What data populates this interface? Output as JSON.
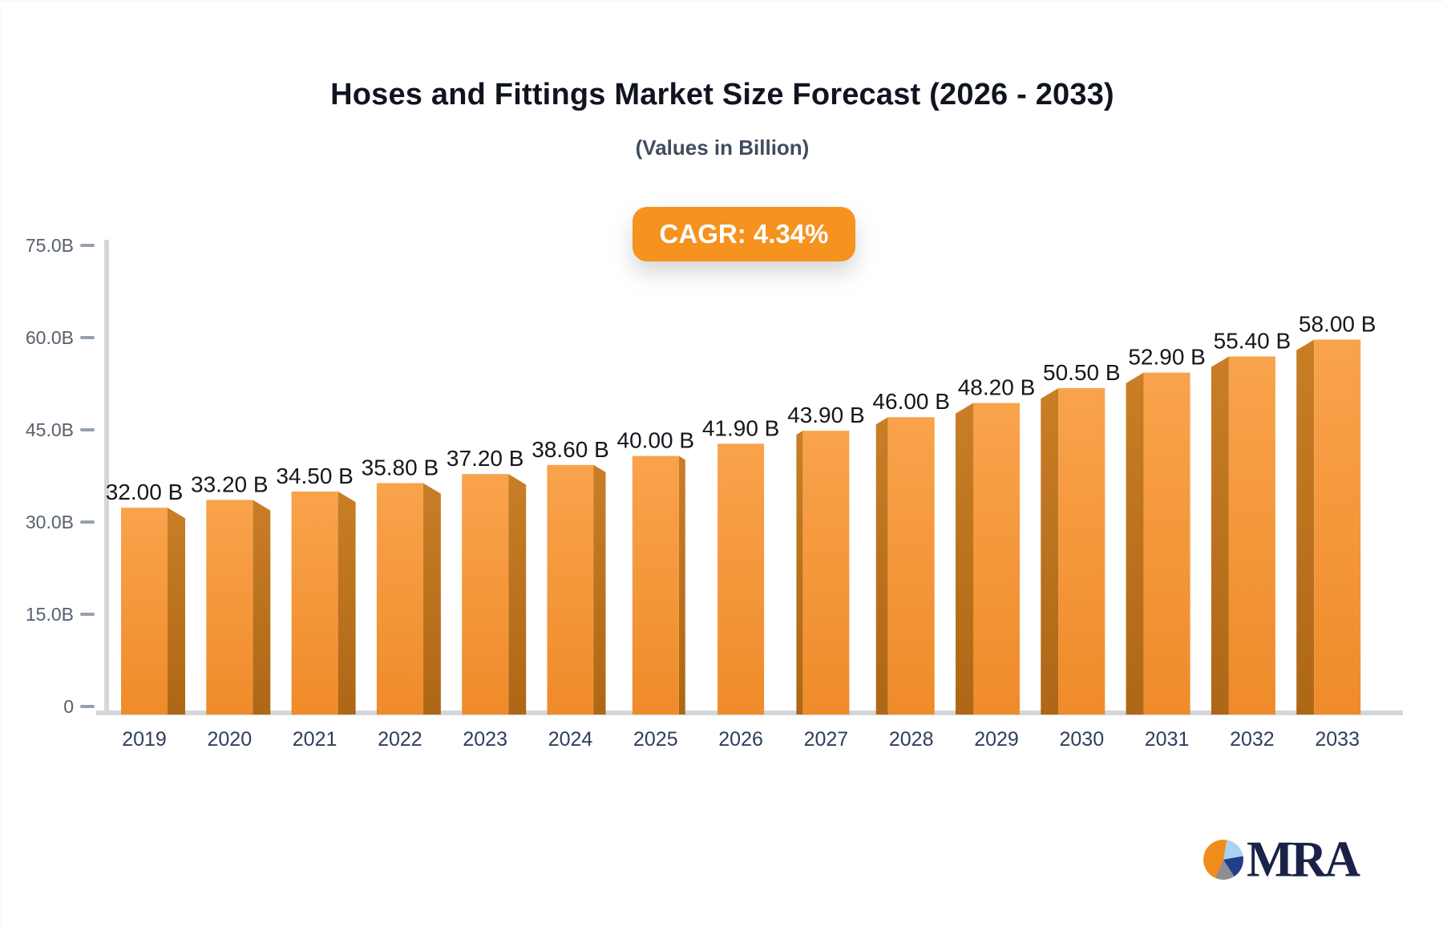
{
  "header": {
    "title": "Hoses and Fittings Market Size Forecast (2026 - 2033)",
    "subtitle": "(Values in Billion)"
  },
  "badge": {
    "label": "CAGR: 4.34%",
    "bg": "#F6921E",
    "text_color": "#FFFFFF"
  },
  "chart_data": {
    "type": "bar",
    "title": "Hoses and Fittings Market Size Forecast (2026 - 2033)",
    "subtitle": "(Values in Billion)",
    "cagr_label": "CAGR: 4.34%",
    "categories": [
      "2019",
      "2020",
      "2021",
      "2022",
      "2023",
      "2024",
      "2025",
      "2026",
      "2027",
      "2028",
      "2029",
      "2030",
      "2031",
      "2032",
      "2033"
    ],
    "values": [
      32.0,
      33.2,
      34.5,
      35.8,
      37.2,
      38.6,
      40.0,
      41.9,
      43.9,
      46.0,
      48.2,
      50.5,
      52.9,
      55.4,
      58.0
    ],
    "value_labels": [
      "32.00 B",
      "33.20 B",
      "34.50 B",
      "35.80 B",
      "37.20 B",
      "38.60 B",
      "40.00 B",
      "41.90 B",
      "43.90 B",
      "46.00 B",
      "48.20 B",
      "50.50 B",
      "52.90 B",
      "55.40 B",
      "58.00 B"
    ],
    "unit": "B",
    "xlabel": "",
    "ylabel": "",
    "ylim": [
      0,
      75
    ],
    "ytick_labels": [
      "75.0B",
      "60.0B",
      "45.0B",
      "30.0B",
      "15.0B",
      "0"
    ],
    "ytick_values": [
      75,
      60,
      45,
      30,
      15,
      0
    ],
    "grid": false,
    "legend": "none",
    "style": "3d-perspective-bars",
    "colors": {
      "bar_face_top": "#F9A34C",
      "bar_face_bottom": "#EF8B2A",
      "bar_side_top": "#C97E26",
      "bar_side_bottom": "#AE6716",
      "axis": "#D4D6DA",
      "tick": "#97A1AE",
      "y_label": "#57606C",
      "x_label": "#2E3E5C",
      "value_label": "#14171C"
    }
  },
  "logo": {
    "text": "MRA",
    "pie_colors": {
      "orange": "#F08C1E",
      "light_blue": "#A8D4F2",
      "navy": "#1F3E8C",
      "gray": "#8E8E96"
    }
  }
}
